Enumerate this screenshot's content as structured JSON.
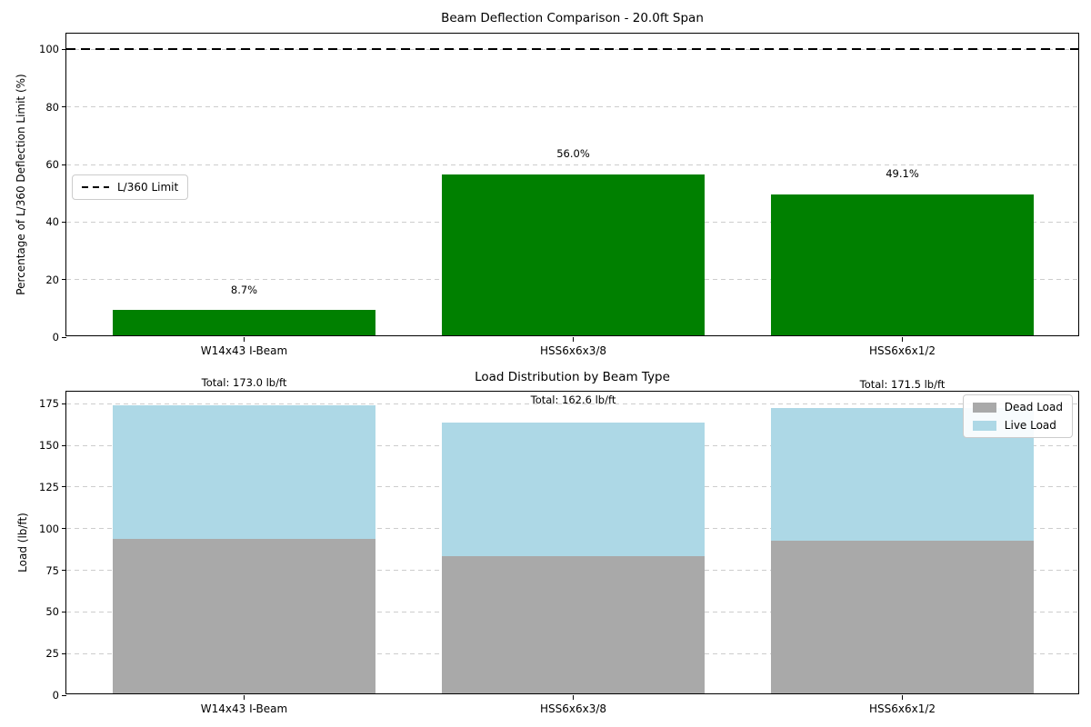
{
  "figure": {
    "background": "#ffffff",
    "text_color": "#000000",
    "gridline_color": "#cdcdcd"
  },
  "chart_data": [
    {
      "type": "bar",
      "title": "Beam Deflection Comparison - 20.0ft Span",
      "xlabel": "",
      "ylabel": "Percentage of L/360 Deflection Limit (%)",
      "categories": [
        "W14x43 I-Beam",
        "HSS6x6x3/8",
        "HSS6x6x1/2"
      ],
      "values": [
        8.7,
        56.0,
        49.1
      ],
      "bar_labels": [
        "8.7%",
        "56.0%",
        "49.1%"
      ],
      "bar_color": "#008000",
      "ylim": [
        0,
        105.5
      ],
      "yticks": [
        0,
        20,
        40,
        60,
        80,
        100
      ],
      "grid": "horizontal dashed",
      "reference_line": {
        "value": 100,
        "style": "dashed",
        "color": "#000000"
      },
      "legend": {
        "position": "center-left",
        "entries": [
          {
            "label": "L/360 Limit",
            "marker": "dashed-line",
            "color": "#000000"
          }
        ]
      }
    },
    {
      "type": "bar-stacked",
      "title": "Load Distribution by Beam Type",
      "xlabel": "",
      "ylabel": "Load (lb/ft)",
      "categories": [
        "W14x43 I-Beam",
        "HSS6x6x3/8",
        "HSS6x6x1/2"
      ],
      "series": [
        {
          "name": "Dead Load",
          "color": "#A9A9A9",
          "values": [
            93.0,
            82.6,
            91.5
          ]
        },
        {
          "name": "Live Load",
          "color": "#ADD8E6",
          "values": [
            80.0,
            80.0,
            80.0
          ]
        }
      ],
      "totals": [
        173.0,
        162.6,
        171.5
      ],
      "total_labels": [
        "Total: 173.0 lb/ft",
        "Total: 162.6 lb/ft",
        "Total: 171.5 lb/ft"
      ],
      "ylim": [
        0,
        182.2
      ],
      "yticks": [
        0,
        25,
        50,
        75,
        100,
        125,
        150,
        175
      ],
      "grid": "horizontal dashed",
      "legend": {
        "position": "upper-right",
        "entries": [
          {
            "label": "Dead Load",
            "marker": "patch",
            "color": "#A9A9A9"
          },
          {
            "label": "Live Load",
            "marker": "patch",
            "color": "#ADD8E6"
          }
        ]
      }
    }
  ]
}
